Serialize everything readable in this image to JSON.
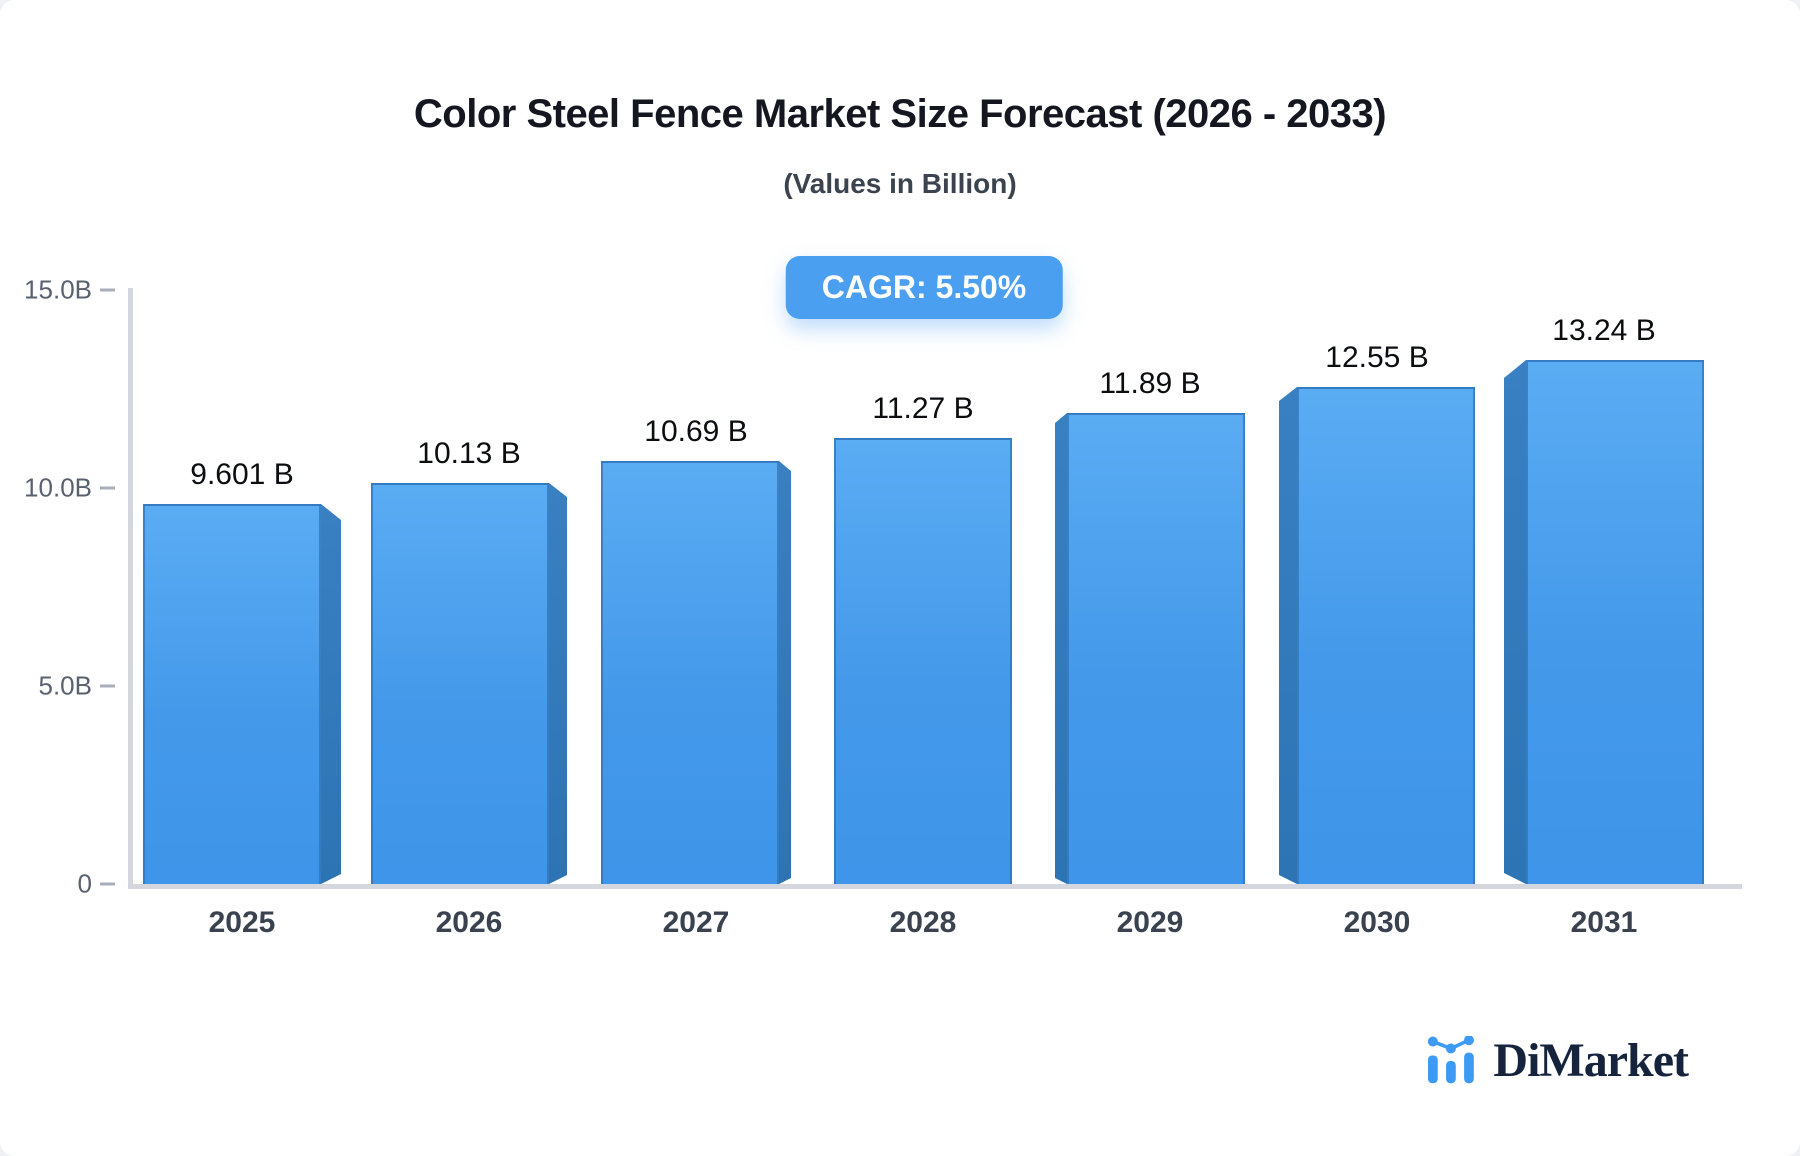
{
  "header": {
    "title": "Color Steel Fence Market Size Forecast (2026 - 2033)",
    "subtitle": "(Values in Billion)",
    "cagr_badge": "CAGR: 5.50%"
  },
  "chart_data": {
    "type": "bar",
    "title": "Color Steel Fence Market Size Forecast (2026 - 2033)",
    "subtitle": "(Values in Billion)",
    "annotation": "CAGR: 5.50%",
    "categories": [
      "2025",
      "2026",
      "2027",
      "2028",
      "2029",
      "2030",
      "2031"
    ],
    "values": [
      9.601,
      10.13,
      10.69,
      11.27,
      11.89,
      12.55,
      13.24
    ],
    "value_labels": [
      "9.601 B",
      "10.13 B",
      "10.69 B",
      "11.27 B",
      "11.89 B",
      "12.55 B",
      "13.24 B"
    ],
    "unit": "Billion",
    "ylim": [
      0,
      15
    ],
    "ytick_labels": [
      "15.0B",
      "10.0B",
      "5.0B",
      "0"
    ],
    "ytick_values": [
      15,
      10,
      5,
      0
    ],
    "grid": false,
    "legend": false,
    "bar_face_color": "#4499ea",
    "bar_side_color": "#2e79bb",
    "badge_color": "#4A9FF0",
    "axis_color": "#d4d8de"
  },
  "footer": {
    "brand": "DiMarket",
    "brand_icon": "dimarket-bar-chart-logo-icon",
    "brand_color": "#16233c",
    "icon_color": "#3d9bf5"
  }
}
